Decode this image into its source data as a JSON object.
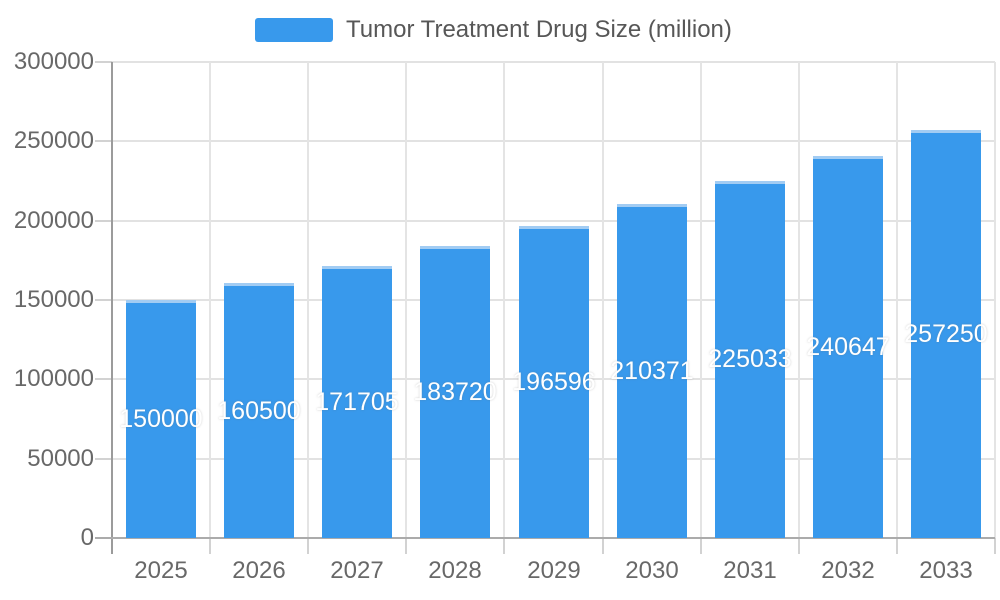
{
  "chart": {
    "legend": {
      "label": "Tumor Treatment Drug Size (million)",
      "position": "top-center"
    },
    "colors": {
      "bar_fill": "#3899EC",
      "bar_top_highlight": "#A2CCF3",
      "bar_label_text": "#FFFFFF",
      "axis_label_text": "#686868",
      "legend_text": "#575757",
      "grid_line": "#E2E2E2",
      "axis_line": "#9B9B9B",
      "tick_line": "#D2D2D2",
      "background": "#FFFFFF"
    }
  },
  "chart_data": {
    "type": "bar",
    "title": "Tumor Treatment Drug Size (million)",
    "xlabel": "",
    "ylabel": "",
    "categories": [
      "2025",
      "2026",
      "2027",
      "2028",
      "2029",
      "2030",
      "2031",
      "2032",
      "2033"
    ],
    "values": [
      150000,
      160500,
      171705,
      183720,
      196596,
      210371,
      225033,
      240647,
      257250
    ],
    "bar_value_labels": [
      "150000",
      "160500",
      "171705",
      "183720",
      "196596",
      "210371",
      "225033",
      "240647",
      "257250"
    ],
    "ylim": [
      0,
      300000
    ],
    "y_ticks": [
      0,
      50000,
      100000,
      150000,
      200000,
      250000,
      300000
    ],
    "y_tick_labels": [
      "0",
      "50000",
      "100000",
      "150000",
      "200000",
      "250000",
      "300000"
    ],
    "grid": true,
    "legend_position": "top-center",
    "value_label_position": "inside-middle"
  }
}
